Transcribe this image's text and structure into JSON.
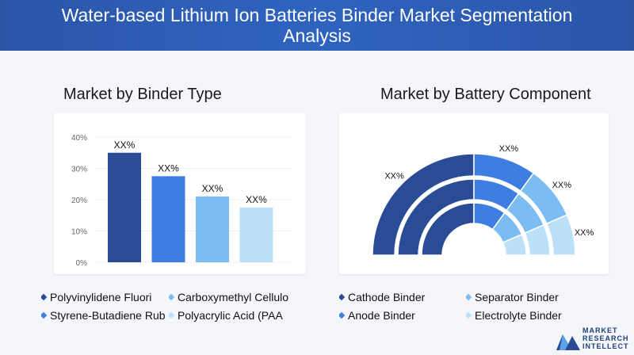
{
  "header": {
    "title": "Water-based Lithium Ion Batteries Binder Market Segmentation Analysis"
  },
  "left": {
    "subtitle": "Market by Binder Type",
    "legend": [
      {
        "label": "Polyvinylidene Fluori",
        "color": "#2a4c97"
      },
      {
        "label": "Carboxymethyl Cellulo",
        "color": "#7bbcf2"
      },
      {
        "label": "Styrene-Butadiene Rub",
        "color": "#3d7ee0"
      },
      {
        "label": "Polyacrylic Acid (PAA",
        "color": "#bde0fa"
      }
    ]
  },
  "right": {
    "subtitle": "Market by Battery Component",
    "legend": [
      {
        "label": "Cathode Binder",
        "color": "#2a4c97"
      },
      {
        "label": "Separator Binder",
        "color": "#7bbcf2"
      },
      {
        "label": "Anode Binder",
        "color": "#3d7ee0"
      },
      {
        "label": "Electrolyte Binder",
        "color": "#bde0fa"
      }
    ]
  },
  "logo": {
    "line1": "MARKET",
    "line2": "RESEARCH",
    "line3": "INTELLECT"
  },
  "chart_data": [
    {
      "type": "bar",
      "categories": [
        "Polyvinylidene Fluori",
        "Styrene-Butadiene Rub",
        "Carboxymethyl Cellulo",
        "Polyacrylic Acid (PAA"
      ],
      "values": [
        35,
        27.5,
        21,
        17.5
      ],
      "data_labels": [
        "XX%",
        "XX%",
        "XX%",
        "XX%"
      ],
      "colors": [
        "#2a4c97",
        "#3d7ee0",
        "#7bbcf2",
        "#bde0fa"
      ],
      "yticks": [
        "40%",
        "30%",
        "20%",
        "10%",
        "0%"
      ],
      "ylim": [
        0,
        40
      ]
    },
    {
      "type": "pie",
      "categories": [
        "Cathode Binder",
        "Anode Binder",
        "Separator Binder",
        "Electrolyte Binder"
      ],
      "values": [
        50,
        20,
        17,
        13
      ],
      "data_labels": [
        "XX%",
        "XX%",
        "XX%",
        "XX%"
      ],
      "colors": [
        "#2a4c97",
        "#3d7ee0",
        "#7bbcf2",
        "#bde0fa"
      ]
    }
  ]
}
